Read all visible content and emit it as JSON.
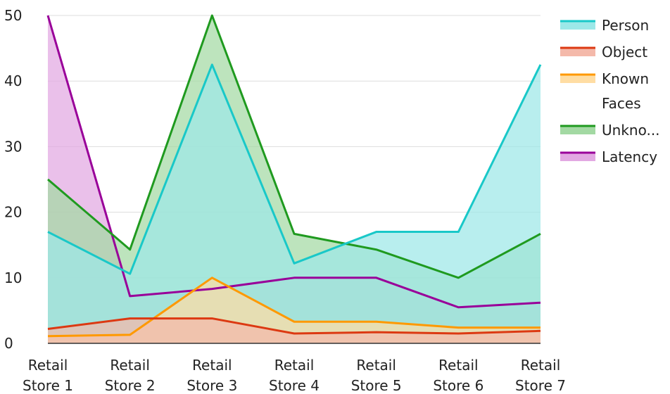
{
  "chart_data": {
    "type": "area",
    "categories": [
      [
        "Retail",
        "Store 1"
      ],
      [
        "Retail",
        "Store 2"
      ],
      [
        "Retail",
        "Store 3"
      ],
      [
        "Retail",
        "Store 4"
      ],
      [
        "Retail",
        "Store 5"
      ],
      [
        "Retail",
        "Store 6"
      ],
      [
        "Retail",
        "Store 7"
      ]
    ],
    "ylim": [
      0,
      50
    ],
    "yticks": [
      0,
      10,
      20,
      30,
      40,
      50
    ],
    "grid": true,
    "legend_position": "right",
    "series": [
      {
        "name": "Latency",
        "color": "#990099",
        "fill": "#e2a8e2",
        "values": [
          50,
          7.2,
          8.3,
          10,
          10,
          5.5,
          6.2
        ]
      },
      {
        "name": "Unkno...",
        "color": "#1f9a1f",
        "fill": "#a3d9a3",
        "values": [
          25,
          14.3,
          50,
          16.7,
          14.3,
          10,
          16.7
        ]
      },
      {
        "name": "Person",
        "color": "#19c8c8",
        "fill": "#9ce8e8",
        "values": [
          17,
          10.6,
          42.5,
          12.2,
          17,
          17,
          42.5
        ]
      },
      {
        "name": "Known Faces",
        "legend_lines": [
          "Known",
          "Faces"
        ],
        "color": "#ff9900",
        "fill": "#ffdda3",
        "values": [
          1.1,
          1.3,
          10,
          3.3,
          3.3,
          2.4,
          2.4
        ]
      },
      {
        "name": "Object",
        "color": "#dc3912",
        "fill": "#f4b9aa",
        "values": [
          2.2,
          3.8,
          3.8,
          1.5,
          1.7,
          1.5,
          1.9
        ]
      }
    ],
    "legend_order": [
      "Person",
      "Object",
      "Known Faces",
      "Unkno...",
      "Latency"
    ]
  }
}
